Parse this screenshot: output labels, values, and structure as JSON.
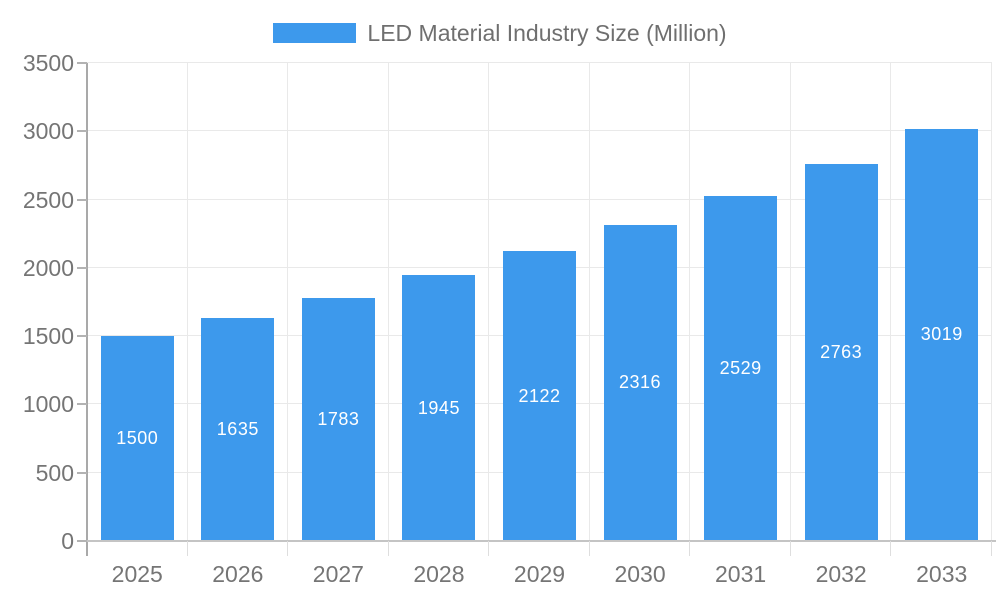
{
  "legend": {
    "label": "LED Material Industry Size (Million)"
  },
  "colors": {
    "bar": "#3d99ec",
    "grid": "#e9e9e9",
    "axis_line": "#a9a9a9",
    "baseline": "#c4c4c4",
    "tick_mark": "#b3b3b3",
    "axis_label_text": "#757575",
    "legend_text": "#6f6f6f",
    "bar_label_text": "#ffffff"
  },
  "chart_data": {
    "type": "bar",
    "title": "LED Material Industry Size (Million)",
    "categories": [
      "2025",
      "2026",
      "2027",
      "2028",
      "2029",
      "2030",
      "2031",
      "2032",
      "2033"
    ],
    "values": [
      1500,
      1635,
      1783,
      1945,
      2122,
      2316,
      2529,
      2763,
      3019
    ],
    "series_name": "LED Material Industry Size (Million)",
    "xlabel": "",
    "ylabel": "",
    "ylim": [
      0,
      3500
    ],
    "yticks": [
      0,
      500,
      1000,
      1500,
      2000,
      2500,
      3000,
      3500
    ],
    "grid": true,
    "legend_position": "top-center",
    "bar_label_position": "inside-center"
  }
}
